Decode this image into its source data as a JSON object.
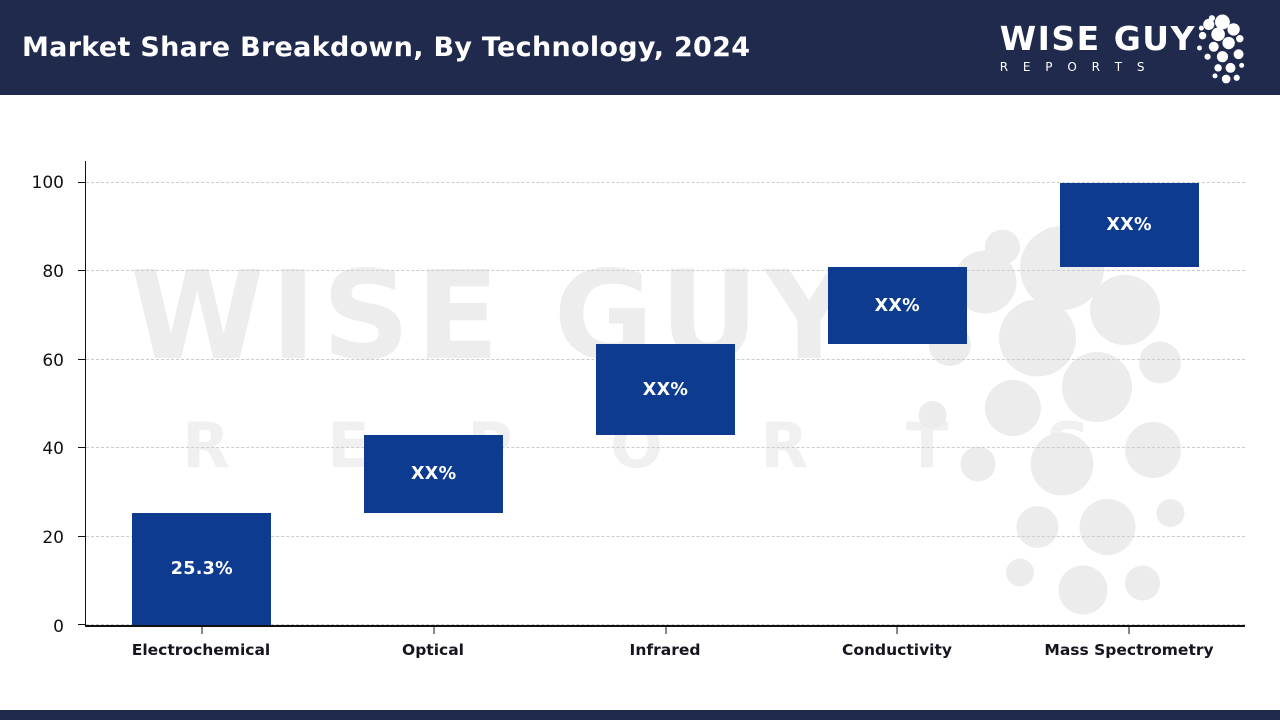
{
  "colors": {
    "header_bg": "#1f2a4d",
    "footer_bg": "#1f2a4d",
    "bar": "#0d3b8f",
    "grid": "#cccccc"
  },
  "header": {
    "title": "Market Share Breakdown, By Technology, 2024",
    "logo": {
      "line1": "WISE GUY",
      "line2": "R E P O R T S"
    }
  },
  "watermark": {
    "line1": "WISE GUY",
    "line2": "R E P O R T S"
  },
  "chart_data": {
    "type": "bar",
    "subtype": "waterfall",
    "title": "Market Share Breakdown, By Technology, 2024",
    "categories": [
      "Electrochemical",
      "Optical",
      "Infrared",
      "Conductivity",
      "Mass Spectrometry"
    ],
    "segments": [
      {
        "category": "Electrochemical",
        "start": 0,
        "end": 25.3,
        "label": "25.3%"
      },
      {
        "category": "Optical",
        "start": 25.3,
        "end": 43,
        "label": "XX%"
      },
      {
        "category": "Infrared",
        "start": 43,
        "end": 63.5,
        "label": "XX%"
      },
      {
        "category": "Conductivity",
        "start": 63.5,
        "end": 81,
        "label": "XX%"
      },
      {
        "category": "Mass Spectrometry",
        "start": 81,
        "end": 100,
        "label": "XX%"
      }
    ],
    "ylim": [
      0,
      100
    ],
    "yticks": [
      0,
      20,
      40,
      60,
      80,
      100
    ],
    "xlabel": "",
    "ylabel": "",
    "grid": "dashed-horizontal",
    "legend": "none",
    "bar_color": "#0d3b8f"
  }
}
